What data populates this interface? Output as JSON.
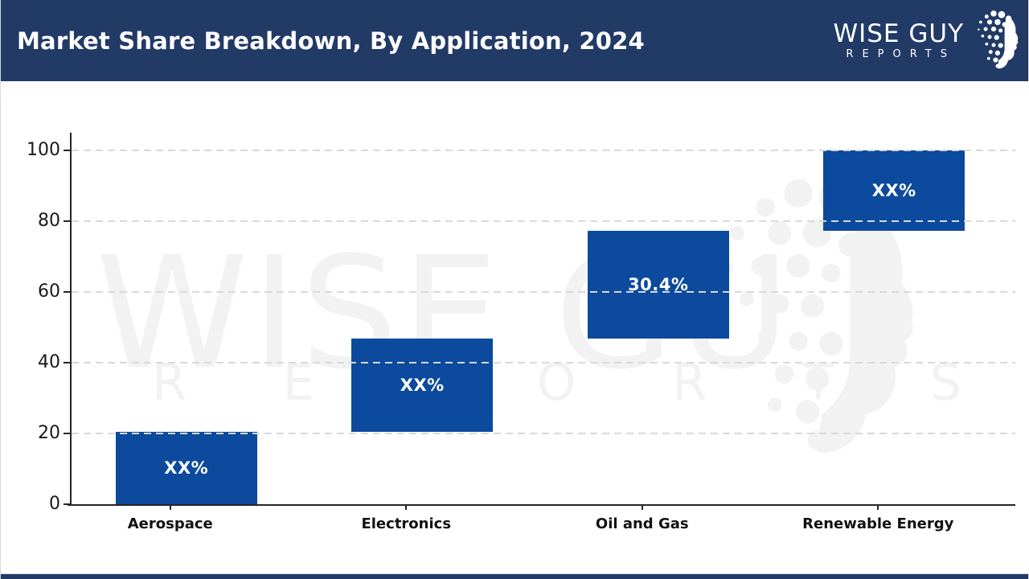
{
  "header": {
    "title": "Market Share Breakdown, By Application, 2024",
    "logo": {
      "wordmark": "WISE GUY",
      "subtitle": "REPORTS"
    },
    "bg_color": "#213a66",
    "text_color": "#ffffff"
  },
  "watermark": {
    "line1": "WISE GU",
    "line2": "R E P O R T S"
  },
  "chart_data": {
    "type": "bar",
    "subtype": "waterfall",
    "title": "Market Share Breakdown, By Application, 2024",
    "categories": [
      "Aerospace",
      "Electronics",
      "Oil and Gas",
      "Renewable Energy"
    ],
    "segments": [
      {
        "category": "Aerospace",
        "start": 0,
        "end": 20.4,
        "value": 20.4,
        "label": "XX%"
      },
      {
        "category": "Electronics",
        "start": 20.4,
        "end": 46.9,
        "value": 26.5,
        "label": "XX%"
      },
      {
        "category": "Oil and Gas",
        "start": 46.9,
        "end": 77.3,
        "value": 30.4,
        "label": "30.4%"
      },
      {
        "category": "Renewable Energy",
        "start": 77.3,
        "end": 100,
        "value": 22.7,
        "label": "XX%"
      }
    ],
    "yticks": [
      0,
      20,
      40,
      60,
      80,
      100
    ],
    "ylim": [
      0,
      105
    ],
    "xlabel": "",
    "ylabel": "",
    "grid": "dashed-horizontal",
    "legend": "none",
    "bar_color": "#0c4a9d",
    "bar_label_color": "#ffffff",
    "grid_color": "#d9d9d9",
    "axis_color": "#262626"
  },
  "footer": {
    "bg_color": "#213a66"
  }
}
